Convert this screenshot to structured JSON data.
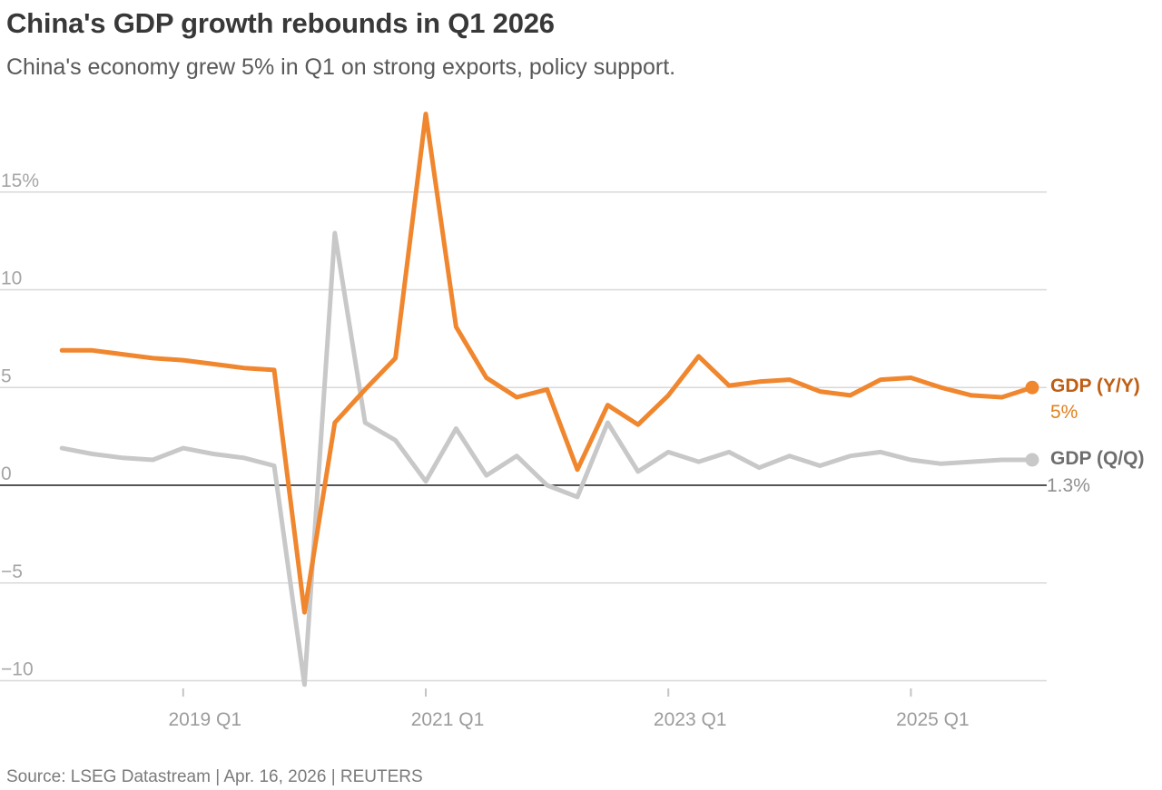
{
  "header": {
    "title": "China's GDP growth rebounds in Q1 2026",
    "subtitle": "China's economy grew 5% in Q1 on strong exports, policy support."
  },
  "legend": {
    "yy_label": "GDP (Y/Y)",
    "yy_value": "5%",
    "qq_label": "GDP (Q/Q)",
    "qq_value": "1.3%"
  },
  "footer": {
    "source": "Source: LSEG Datastream | Apr. 16, 2026 | REUTERS"
  },
  "colors": {
    "yy_line": "#F0862D",
    "qq_line": "#C8C8C8",
    "yy_label_text": "#C05E13",
    "yy_value_text": "#E0801F",
    "qq_label_text": "#6E6E6E",
    "qq_value_text": "#8F8F8F",
    "gridline": "#D8D8D8",
    "zero_line": "#3E3E3E",
    "tick": "#C4C4C4"
  },
  "chart_data": {
    "type": "line",
    "title": "China's GDP growth rebounds in Q1 2026",
    "subtitle": "China's economy grew 5% in Q1 on strong exports, policy support.",
    "unit": "%",
    "grid": true,
    "legend_position": "right",
    "ylim": [
      -10,
      15
    ],
    "x": [
      "2018 Q1",
      "2018 Q2",
      "2018 Q3",
      "2018 Q4",
      "2019 Q1",
      "2019 Q2",
      "2019 Q3",
      "2019 Q4",
      "2020 Q1",
      "2020 Q2",
      "2020 Q3",
      "2020 Q4",
      "2021 Q1",
      "2021 Q2",
      "2021 Q3",
      "2021 Q4",
      "2022 Q1",
      "2022 Q2",
      "2022 Q3",
      "2022 Q4",
      "2023 Q1",
      "2023 Q2",
      "2023 Q3",
      "2023 Q4",
      "2024 Q1",
      "2024 Q2",
      "2024 Q3",
      "2024 Q4",
      "2025 Q1",
      "2025 Q2",
      "2025 Q3",
      "2025 Q4",
      "2026 Q1"
    ],
    "series": [
      {
        "name": "GDP (Y/Y)",
        "color": "#F0862D",
        "end_label": "GDP (Y/Y)",
        "end_value": "5%",
        "values": [
          6.9,
          6.9,
          6.7,
          6.5,
          6.4,
          6.2,
          6.0,
          5.9,
          -6.5,
          3.2,
          4.9,
          6.5,
          19.0,
          8.1,
          5.5,
          4.5,
          4.9,
          0.8,
          4.1,
          3.1,
          4.6,
          6.6,
          5.1,
          5.3,
          5.4,
          4.8,
          4.6,
          5.4,
          5.5,
          5.0,
          4.6,
          4.5,
          5.0
        ]
      },
      {
        "name": "GDP (Q/Q)",
        "color": "#C8C8C8",
        "end_label": "GDP (Q/Q)",
        "end_value": "1.3%",
        "values": [
          1.9,
          1.6,
          1.4,
          1.3,
          1.9,
          1.6,
          1.4,
          1.0,
          -10.2,
          12.9,
          3.2,
          2.3,
          0.2,
          2.9,
          0.5,
          1.5,
          0.0,
          -0.6,
          3.2,
          0.7,
          1.7,
          1.2,
          1.7,
          0.9,
          1.5,
          1.0,
          1.5,
          1.7,
          1.3,
          1.1,
          1.2,
          1.3,
          1.3
        ]
      }
    ],
    "y_ticks": [
      {
        "value": 15,
        "label": "15%"
      },
      {
        "value": 10,
        "label": "10"
      },
      {
        "value": 5,
        "label": "5"
      },
      {
        "value": 0,
        "label": "0"
      },
      {
        "value": -5,
        "label": "−5"
      },
      {
        "value": -10,
        "label": "−10"
      }
    ],
    "x_ticks": [
      {
        "label": "2019 Q1",
        "i": 4
      },
      {
        "label": "2021 Q1",
        "i": 12
      },
      {
        "label": "2023 Q1",
        "i": 20
      },
      {
        "label": "2025 Q1",
        "i": 28
      }
    ]
  }
}
